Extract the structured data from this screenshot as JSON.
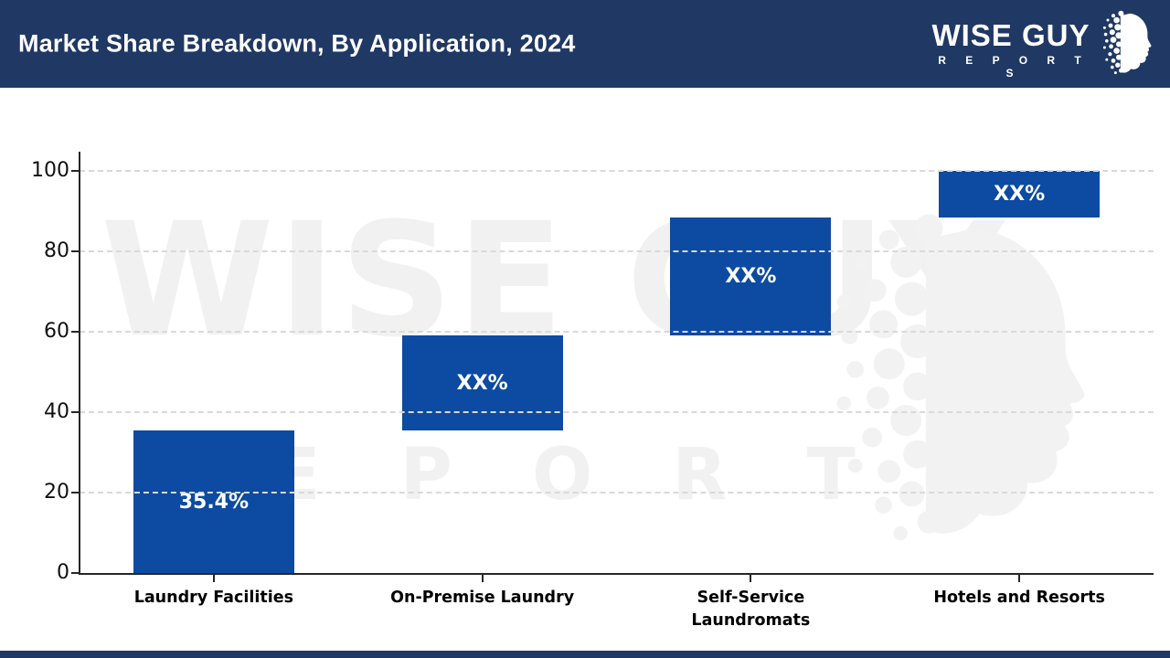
{
  "header": {
    "title": "Market Share Breakdown, By Application, 2024",
    "bg_color": "#203864",
    "logo": {
      "line1": "WISE GUY",
      "line2": "R E P O R T S"
    }
  },
  "watermark": {
    "line1": "WISE GUY",
    "line2": "R E P O R T S"
  },
  "chart_data": {
    "type": "bar",
    "subtype": "floating-segment-waterfall",
    "title": "Market Share Breakdown, By Application, 2024",
    "categories": [
      "Laundry Facilities",
      "On-Premise Laundry",
      "Self-Service Laundromats",
      "Hotels and Resorts"
    ],
    "bars": [
      {
        "category": "Laundry Facilities",
        "start": 0,
        "end": 35.4,
        "label": "35.4%"
      },
      {
        "category": "On-Premise Laundry",
        "start": 35.4,
        "end": 59,
        "label": "XX%"
      },
      {
        "category": "Self-Service Laundromats",
        "start": 59,
        "end": 88.5,
        "label": "XX%"
      },
      {
        "category": "Hotels and Resorts",
        "start": 88.5,
        "end": 100,
        "label": "XX%"
      }
    ],
    "ylim": [
      0,
      105
    ],
    "yticks": [
      0,
      20,
      40,
      60,
      80,
      100
    ],
    "xlabel": "",
    "ylabel": "",
    "grid": "horizontal-dashed",
    "legend": "none",
    "bar_color": "#0c4ba1",
    "bar_label_color": "#ffffff",
    "axis_color": "#262626",
    "gridline_color": "#d9d9d9"
  }
}
